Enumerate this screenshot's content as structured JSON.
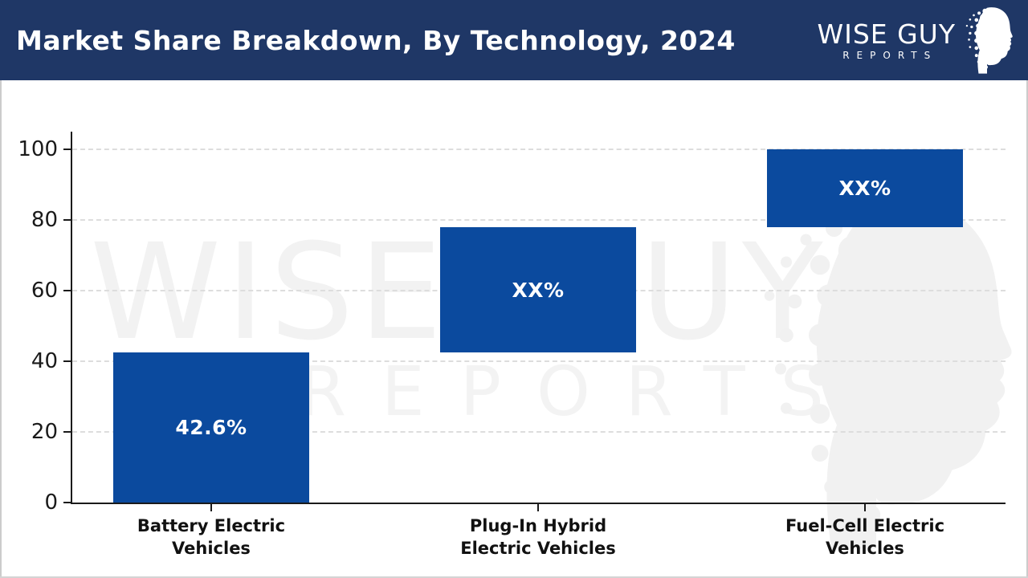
{
  "header": {
    "title": "Market Share Breakdown, By Technology, 2024",
    "logo": {
      "wordmark": "WISE GUY",
      "subtext": "REPORTS"
    }
  },
  "watermark": {
    "wordmark": "WISE GUY",
    "subtext": "REPORTS"
  },
  "colors": {
    "header_bg": "#1f3766",
    "bar": "#0b4a9e",
    "bar_label": "#ffffff",
    "grid": "#dddddd",
    "axis": "#1a1a1a",
    "watermark": "#f2f2f2"
  },
  "chart_data": {
    "type": "bar",
    "subtype": "waterfall",
    "title": "Market Share Breakdown, By Technology, 2024",
    "categories": [
      "Battery Electric\nVehicles",
      "Plug-In Hybrid\nElectric Vehicles",
      "Fuel-Cell Electric\nVehicles"
    ],
    "segments": [
      {
        "category": "Battery Electric Vehicles",
        "start": 0,
        "end": 42.6,
        "label": "42.6%"
      },
      {
        "category": "Plug-In Hybrid Electric Vehicles",
        "start": 42.6,
        "end": 78,
        "label": "XX%"
      },
      {
        "category": "Fuel-Cell Electric Vehicles",
        "start": 78,
        "end": 100,
        "label": "XX%"
      }
    ],
    "ylim": [
      0,
      100
    ],
    "yticks": [
      0,
      20,
      40,
      60,
      80,
      100
    ],
    "grid": "horizontal-dashed",
    "legend": null,
    "bar_color": "#0b4a9e"
  }
}
